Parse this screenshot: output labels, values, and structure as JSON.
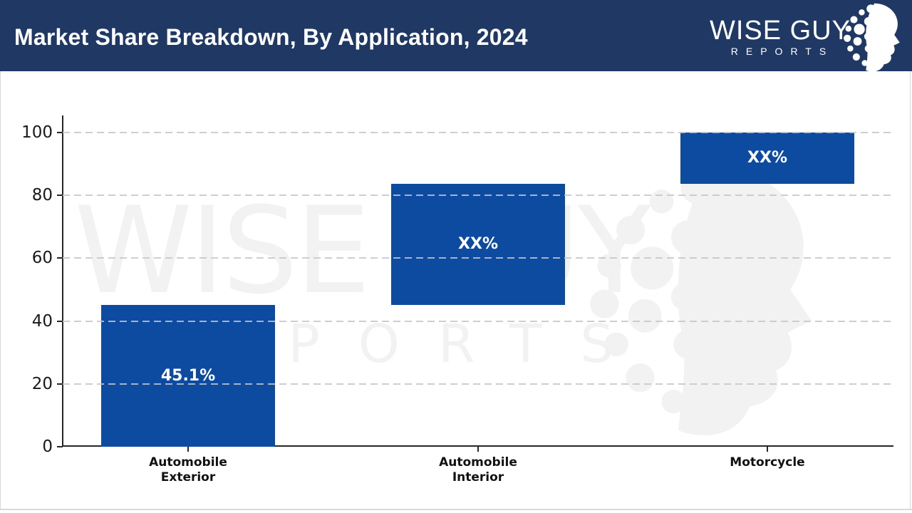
{
  "header": {
    "title": "Market Share Breakdown, By Application, 2024",
    "background": "#1f3864"
  },
  "logo": {
    "line1": "WISE GUY",
    "line2": "REPORTS",
    "face_icon": "dotted-head-profile-icon"
  },
  "watermark": {
    "color": "#f2f2f2"
  },
  "chart_data": {
    "type": "bar",
    "subtype": "stacked-waterfall",
    "title": "Market Share Breakdown, By Application, 2024",
    "categories": [
      "Automobile Exterior",
      "Automobile Interior",
      "Motorcycle"
    ],
    "category_lines": [
      [
        "Automobile",
        "Exterior"
      ],
      [
        "Automobile",
        "Interior"
      ],
      [
        "Motorcycle"
      ]
    ],
    "segments": [
      {
        "category": "Automobile Exterior",
        "start": 0,
        "end": 45.1,
        "label": "45.1%"
      },
      {
        "category": "Automobile Interior",
        "start": 45.1,
        "end": 83.7,
        "label": "XX%"
      },
      {
        "category": "Motorcycle",
        "start": 83.7,
        "end": 100,
        "label": "XX%"
      }
    ],
    "yticks": [
      0,
      20,
      40,
      60,
      80,
      100
    ],
    "ylim": [
      0,
      105
    ],
    "xlabel": "",
    "ylabel": "",
    "grid": "dashed-horizontal",
    "legend": "none",
    "bar_color": "#0c4ba0",
    "bar_label_color": "#ffffff",
    "axis_color": "#262626",
    "unit": "%"
  }
}
